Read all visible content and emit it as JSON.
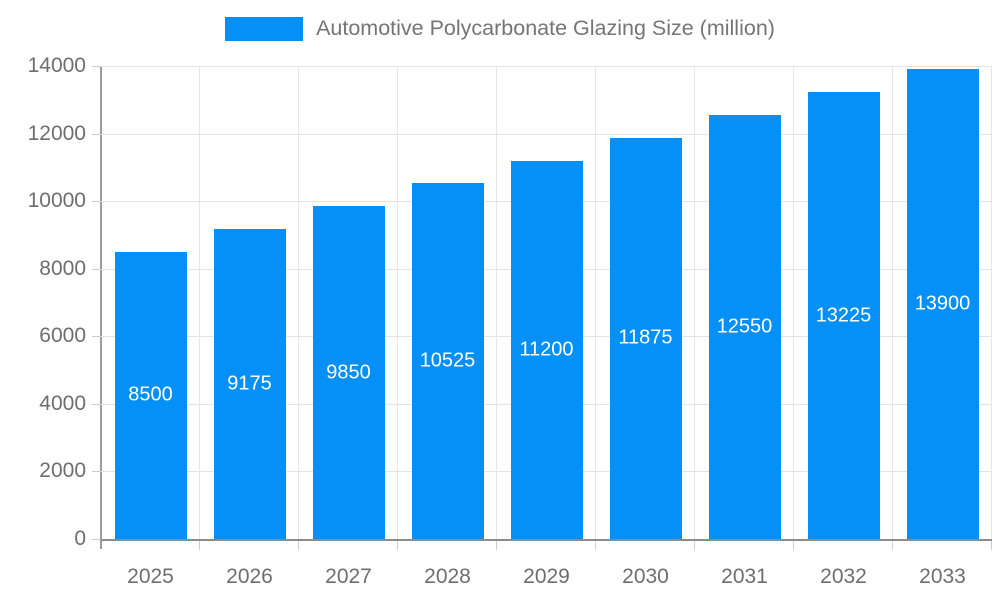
{
  "chart_data": {
    "type": "bar",
    "title": "Automotive Polycarbonate Glazing Size (million)",
    "categories": [
      "2025",
      "2026",
      "2027",
      "2028",
      "2029",
      "2030",
      "2031",
      "2032",
      "2033"
    ],
    "values": [
      8500,
      9175,
      9850,
      10525,
      11200,
      11875,
      12550,
      13225,
      13900
    ],
    "xlabel": "",
    "ylabel": "",
    "ylim": [
      0,
      14000
    ],
    "y_ticks": [
      0,
      2000,
      4000,
      6000,
      8000,
      10000,
      12000,
      14000
    ],
    "grid": true,
    "legend_position": "top",
    "legend_entries": [
      "Automotive Polycarbonate Glazing Size (million)"
    ],
    "colors": {
      "bar": "#0590f8",
      "bar_value_label": "#ffffff",
      "axis_text": "#6e6e6e",
      "legend_text": "#757575",
      "gridline": "#e4e4e4",
      "axis_line": "#9b9b9b",
      "background": "#ffffff"
    }
  }
}
